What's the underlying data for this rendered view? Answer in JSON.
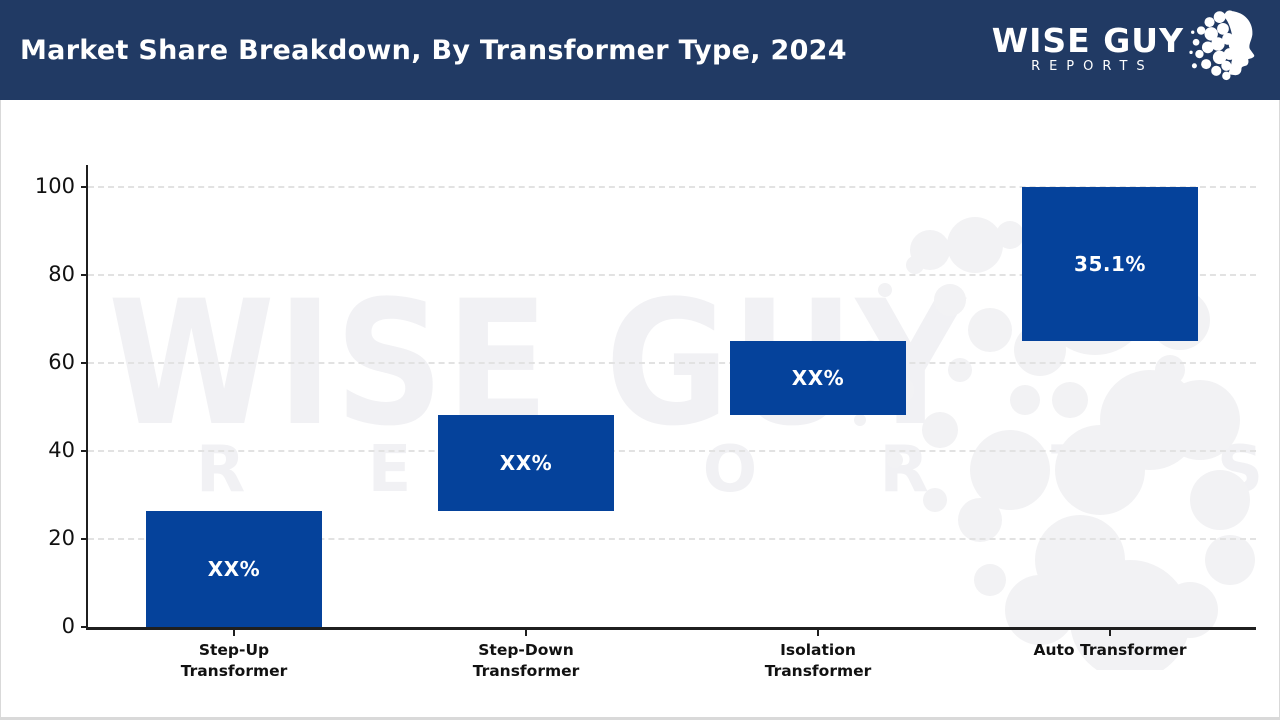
{
  "header": {
    "title": "Market Share Breakdown, By Transformer Type, 2024",
    "logo": {
      "line1": "WISE GUY",
      "line2": "REPORTS"
    }
  },
  "watermark": {
    "line1": "WISE GUY",
    "line2": "R E P O R T S"
  },
  "colors": {
    "header_bg": "#213A64",
    "bar": "#05429B",
    "grid": "#E2E2E2",
    "axis": "#1F1F1F",
    "watermark": "#F1F1F4",
    "bar_label": "#FFFFFF",
    "tick_label": "#111111"
  },
  "chart_data": {
    "type": "bar",
    "subtype": "floating-waterfall",
    "title": "Market Share Breakdown, By Transformer Type, 2024",
    "categories": [
      "Step-Up\nTransformer",
      "Step-Down\nTransformer",
      "Isolation\nTransformer",
      "Auto Transformer"
    ],
    "segments": [
      {
        "start": 0,
        "end": 26.4,
        "label": "XX%"
      },
      {
        "start": 26.4,
        "end": 48.1,
        "label": "XX%"
      },
      {
        "start": 48.1,
        "end": 64.9,
        "label": "XX%"
      },
      {
        "start": 64.9,
        "end": 100,
        "label": "35.1%"
      }
    ],
    "yticks": [
      0,
      20,
      40,
      60,
      80,
      100
    ],
    "ylim": [
      0,
      105
    ],
    "xlabel": "",
    "ylabel": "",
    "grid": "dashed-horizontal",
    "legend": "none"
  }
}
